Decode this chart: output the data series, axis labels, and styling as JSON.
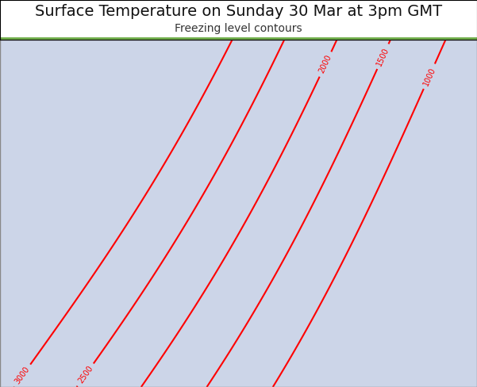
{
  "title": "Surface Temperature on Sunday 30 Mar at 3pm GMT",
  "subtitle": "Freezing level contours",
  "title_fontsize": 14,
  "subtitle_fontsize": 10,
  "bg_color": "#e8eaf0",
  "header_bg": "#ffffff",
  "border_color": "#888888",
  "contour_color": "#ff0000",
  "contour_linewidth": 1.5,
  "contour_label_fontsize": 7,
  "map_extent": [
    -25,
    25,
    34,
    62
  ],
  "contour_levels": [
    1000,
    1500,
    2000,
    2500,
    3000
  ],
  "ocean_color": "#ccd5e8",
  "land_colors": {
    "low": "#7fb87f",
    "mid": "#c8b44a",
    "high": "#c87040",
    "mountain": "#8b7355"
  }
}
